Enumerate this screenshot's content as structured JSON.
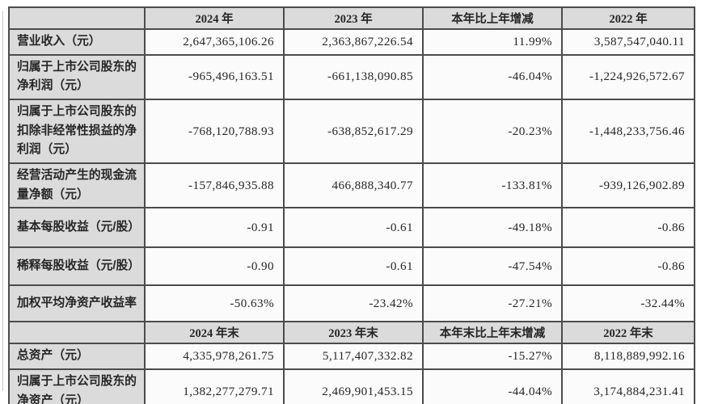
{
  "colors": {
    "header_background": "#dbdbdb",
    "label_background": "#dbdbdb",
    "value_background": "#fbfbfb",
    "grid_border": "#4c4c4c",
    "text": "#262626"
  },
  "table": {
    "sections": [
      {
        "header": [
          "",
          "2024 年",
          "2023 年",
          "本年比上年增减",
          "2022 年"
        ],
        "rows": [
          {
            "label": "营业收入（元）",
            "values": [
              "2,647,365,106.26",
              "2,363,867,226.54",
              "11.99%",
              "3,587,547,040.11"
            ]
          },
          {
            "label": "归属于上市公司股东的净利润（元）",
            "values": [
              "-965,496,163.51",
              "-661,138,090.85",
              "-46.04%",
              "-1,224,926,572.67"
            ]
          },
          {
            "label": "归属于上市公司股东的扣除非经常性损益的净利润（元）",
            "values": [
              "-768,120,788.93",
              "-638,852,617.29",
              "-20.23%",
              "-1,448,233,756.46"
            ]
          },
          {
            "label": "经营活动产生的现金流量净额（元）",
            "values": [
              "-157,846,935.88",
              "466,888,340.77",
              "-133.81%",
              "-939,126,902.89"
            ]
          },
          {
            "label": "基本每股收益（元/股）",
            "values": [
              "-0.91",
              "-0.61",
              "-49.18%",
              "-0.86"
            ]
          },
          {
            "label": "稀释每股收益（元/股）",
            "values": [
              "-0.90",
              "-0.61",
              "-47.54%",
              "-0.86"
            ]
          },
          {
            "label": "加权平均净资产收益率",
            "values": [
              "-50.63%",
              "-23.42%",
              "-27.21%",
              "-32.44%"
            ]
          }
        ]
      },
      {
        "header": [
          "",
          "2024 年末",
          "2023 年末",
          "本年末比上年末增减",
          "2022 年末"
        ],
        "rows": [
          {
            "label": "总资产（元）",
            "values": [
              "4,335,978,261.75",
              "5,117,407,332.82",
              "-15.27%",
              "8,118,889,992.16"
            ]
          },
          {
            "label": "归属于上市公司股东的净资产（元）",
            "values": [
              "1,382,277,279.71",
              "2,469,901,453.15",
              "-44.04%",
              "3,174,884,231.41"
            ]
          }
        ]
      }
    ]
  }
}
